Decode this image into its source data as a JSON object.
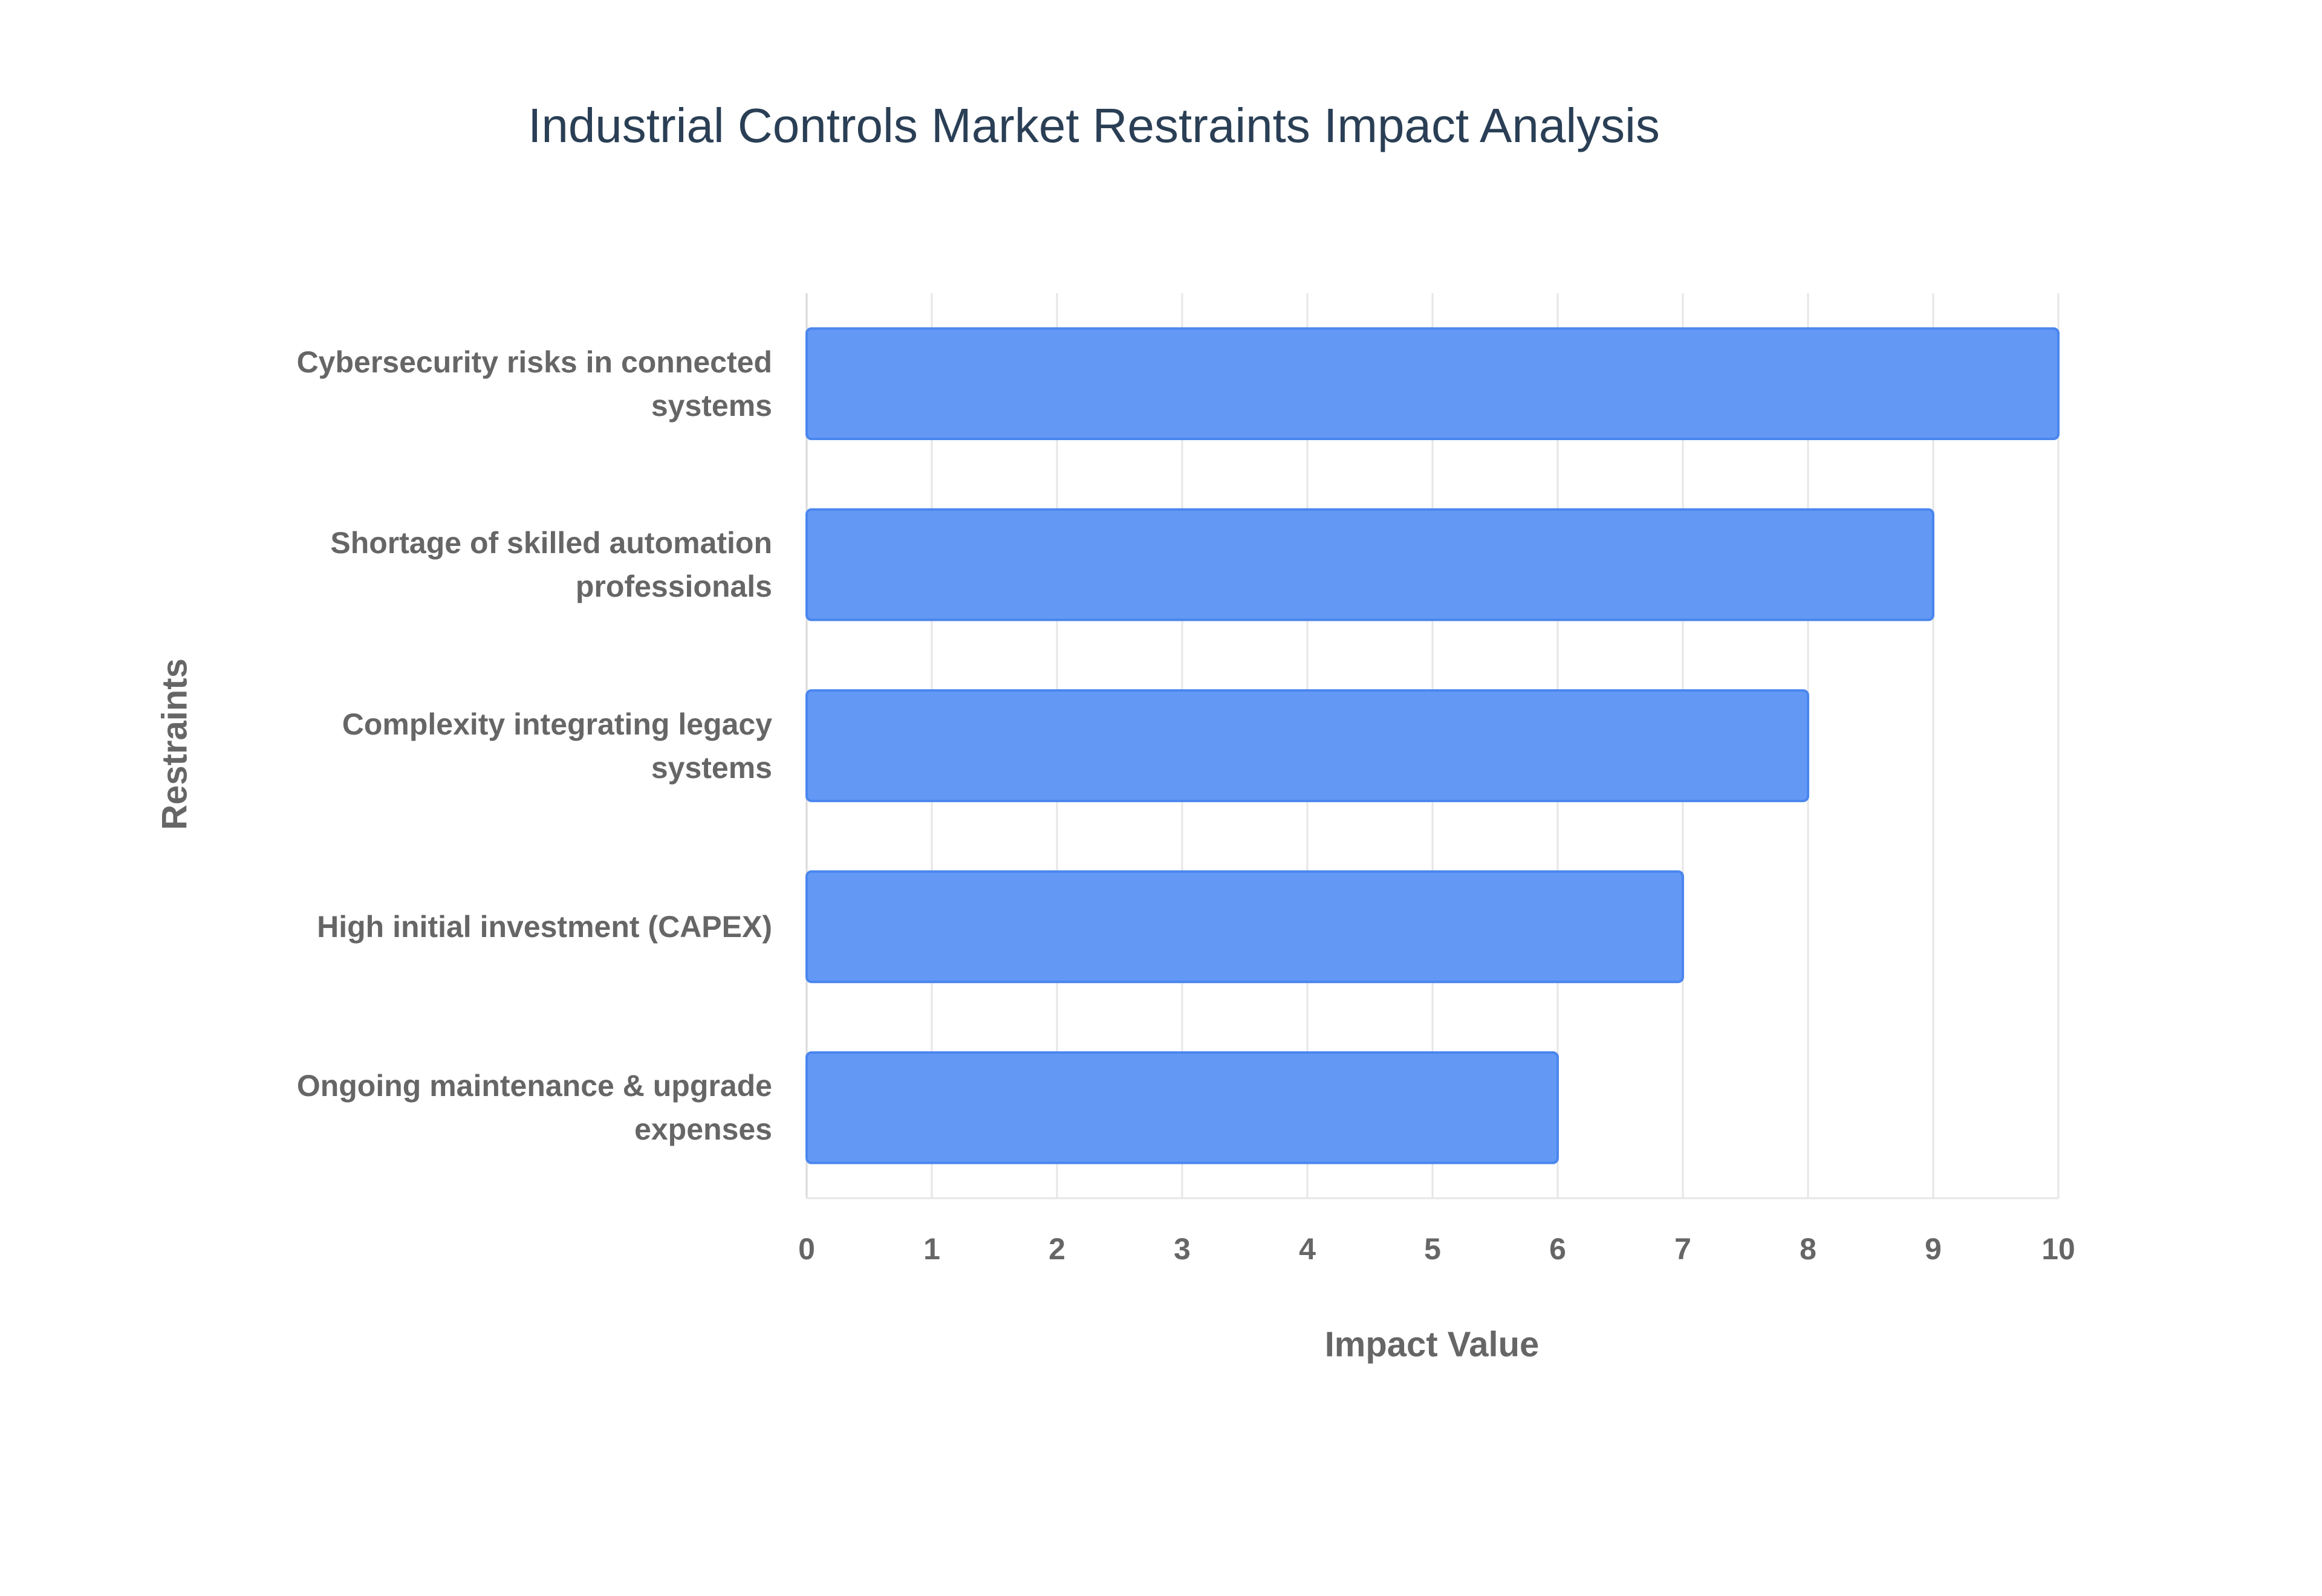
{
  "chart_data": {
    "type": "bar",
    "orientation": "horizontal",
    "title": "Industrial Controls Market Restraints Impact Analysis",
    "x_label": "Impact Value",
    "y_label": "Restraints",
    "categories": [
      "Cybersecurity risks in connected systems",
      "Shortage of skilled automation professionals",
      "Complexity integrating legacy systems",
      "High initial investment (CAPEX)",
      "Ongoing maintenance & upgrade expenses"
    ],
    "values": [
      10,
      9,
      8,
      7,
      6
    ],
    "color": "#6399f5",
    "xlim": [
      0,
      10
    ],
    "xticks": [
      0,
      1,
      2,
      3,
      4,
      5,
      6,
      7,
      8,
      9,
      10
    ],
    "grid": true
  }
}
